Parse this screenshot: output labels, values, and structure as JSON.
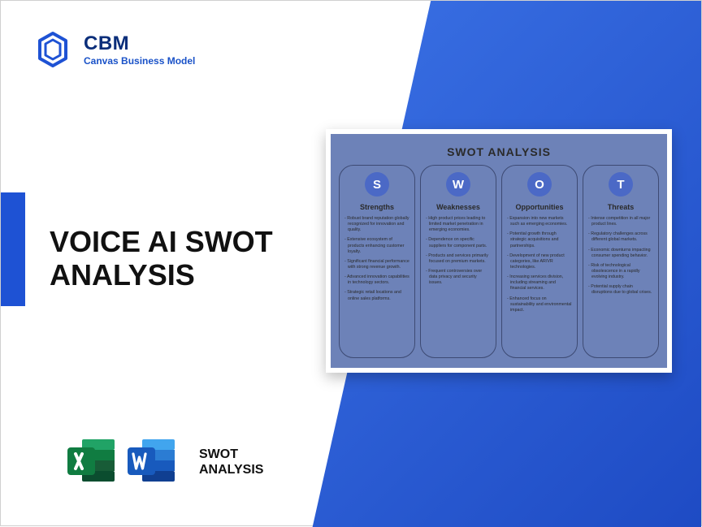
{
  "logo": {
    "title": "CBM",
    "subtitle": "Canvas Business Model",
    "mark_color": "#1e52d4"
  },
  "main_title": "VOICE AI SWOT ANALYSIS",
  "bottom": {
    "excel_color": "#107c41",
    "word_color": "#1857b6",
    "label_line1": "SWOT",
    "label_line2": "ANALYSIS"
  },
  "colors": {
    "triangle_start": "#3b72e6",
    "triangle_end": "#1e4bc4",
    "left_tab": "#1e52d4",
    "card_bg": "#6d82b8",
    "col_border": "#3d4a73",
    "letter_bg": "#4b69c6"
  },
  "swot": {
    "title": "SWOT ANALYSIS",
    "columns": [
      {
        "letter": "S",
        "heading": "Strengths",
        "items": [
          "Robust brand reputation globally recognized for innovation and quality.",
          "Extensive ecosystem of products enhancing customer loyalty.",
          "Significant financial performance with strong revenue growth.",
          "Advanced innovation capabilities in technology sectors.",
          "Strategic retail locations and online sales platforms."
        ]
      },
      {
        "letter": "W",
        "heading": "Weaknesses",
        "items": [
          "High product prices leading to limited market penetration in emerging economies.",
          "Dependence on specific suppliers for component parts.",
          "Products and services primarily focused on premium markets.",
          "Frequent controversies over data privacy and security issues."
        ]
      },
      {
        "letter": "O",
        "heading": "Opportunities",
        "items": [
          "Expansion into new markets such as emerging economies.",
          "Potential growth through strategic acquisitions and partnerships.",
          "Development of new product categories, like AR/VR technologies.",
          "Increasing services division, including streaming and financial services.",
          "Enhanced focus on sustainability and environmental impact."
        ]
      },
      {
        "letter": "T",
        "heading": "Threats",
        "items": [
          "Intense competition in all major product lines.",
          "Regulatory challenges across different global markets.",
          "Economic downturns impacting consumer spending behavior.",
          "Risk of technological obsolescence in a rapidly evolving industry.",
          "Potential supply chain disruptions due to global crises."
        ]
      }
    ]
  }
}
